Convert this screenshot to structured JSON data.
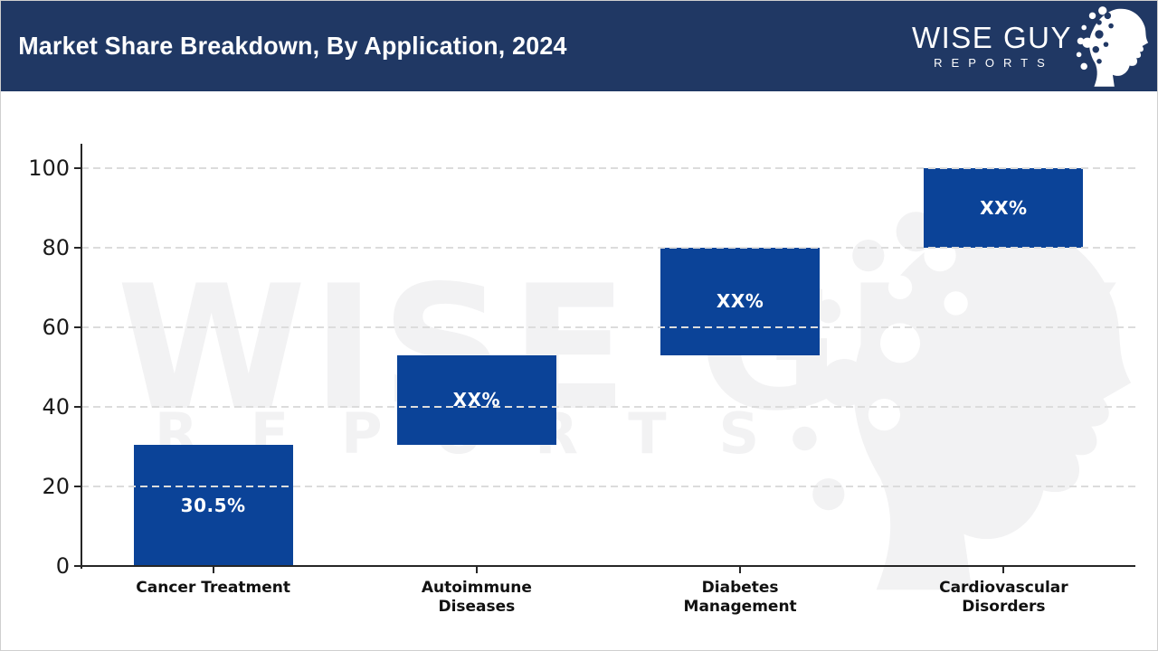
{
  "header": {
    "title": "Market Share Breakdown, By Application, 2024",
    "bg_color": "#203864",
    "logo": {
      "line1": "WISE GUY",
      "line2": "REPORTS"
    }
  },
  "watermark": {
    "line1": "WISE GUY",
    "line2": "REPORTS"
  },
  "chart_data": {
    "type": "bar",
    "subtype": "waterfall",
    "title": "Market Share Breakdown, By Application, 2024",
    "categories": [
      [
        "Cancer Treatment"
      ],
      [
        "Autoimmune",
        "Diseases"
      ],
      [
        "Diabetes",
        "Management"
      ],
      [
        "Cardiovascular",
        "Disorders"
      ]
    ],
    "bars": [
      {
        "category": "Cancer Treatment",
        "start": 0,
        "end": 30.5,
        "label": "30.5%"
      },
      {
        "category": "Autoimmune Diseases",
        "start": 30.5,
        "end": 53,
        "label": "XX%"
      },
      {
        "category": "Diabetes Management",
        "start": 53,
        "end": 80,
        "label": "XX%"
      },
      {
        "category": "Cardiovascular Disorders",
        "start": 80,
        "end": 100,
        "label": "XX%"
      }
    ],
    "yticks": [
      0,
      20,
      40,
      60,
      80,
      100
    ],
    "ylim": [
      0,
      106
    ],
    "bar_color": "#0b4398",
    "grid": "dashed-horizontal",
    "legend_position": "none"
  }
}
